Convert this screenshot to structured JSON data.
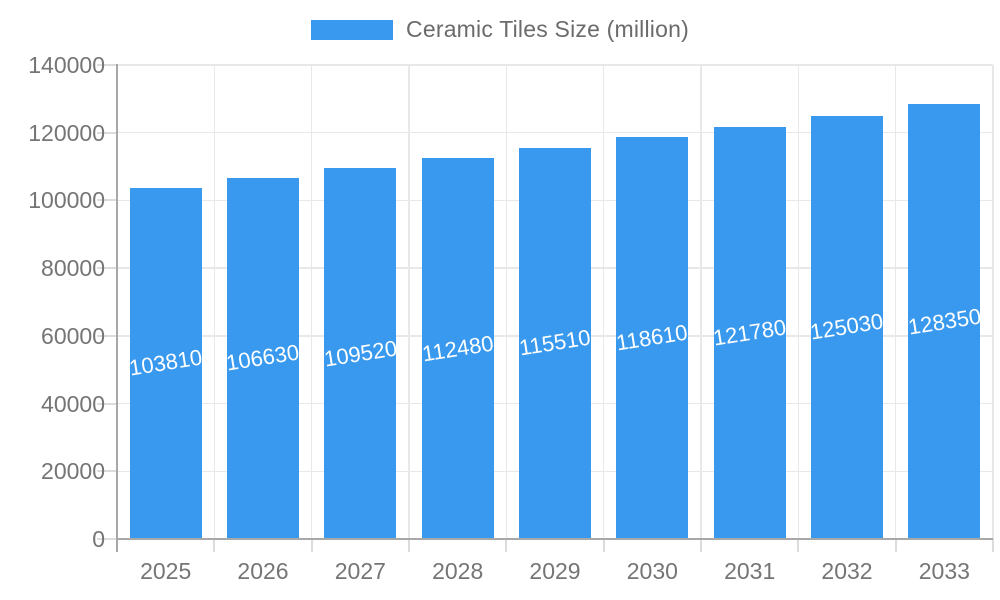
{
  "legend": {
    "label": "Ceramic Tiles Size (million)"
  },
  "chart_data": {
    "type": "bar",
    "title": "",
    "series_name": "Ceramic Tiles Size (million)",
    "categories": [
      "2025",
      "2026",
      "2027",
      "2028",
      "2029",
      "2030",
      "2031",
      "2032",
      "2033"
    ],
    "values": [
      103810,
      106630,
      109520,
      112480,
      115510,
      118610,
      121780,
      125030,
      128350
    ],
    "xlabel": "",
    "ylabel": "",
    "ylim": [
      0,
      140000
    ],
    "ytick_step": 20000,
    "yticks": [
      0,
      20000,
      40000,
      60000,
      80000,
      100000,
      120000,
      140000
    ],
    "grid": true,
    "legend_position": "top",
    "bar_labels_inside": true,
    "colors": {
      "bar": "#3899EF",
      "bar_label": "#ffffff",
      "grid": "#e8e8e8",
      "tick": "#dcdcdc",
      "axis": "#a8a8a8",
      "tick_label": "#757575",
      "legend_text": "#6b6b6b",
      "background": "#ffffff"
    }
  }
}
